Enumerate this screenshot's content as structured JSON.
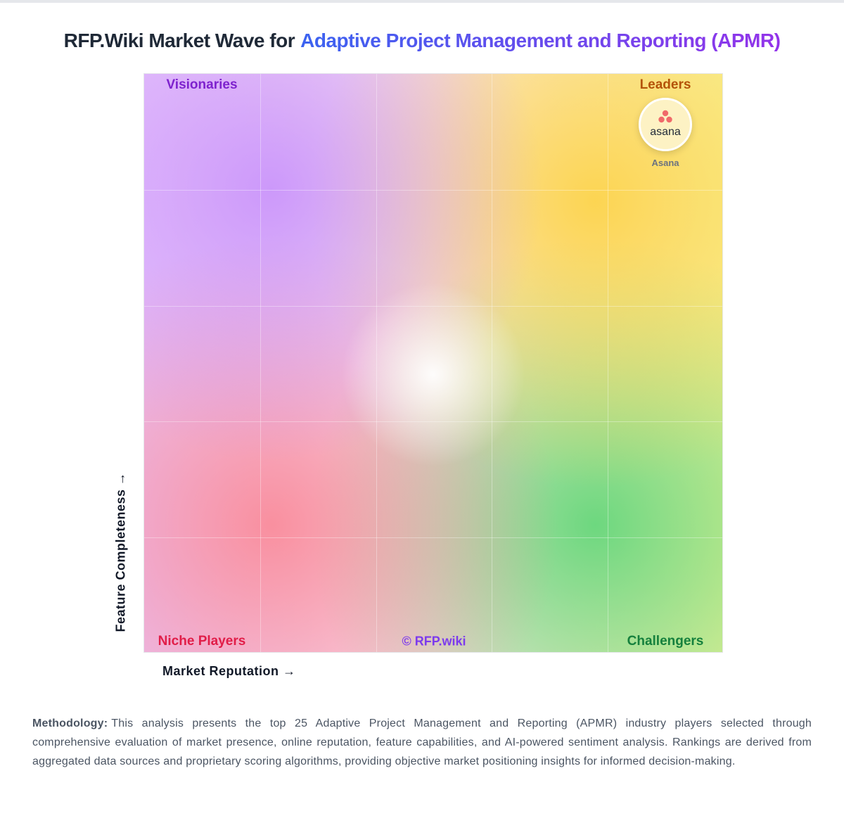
{
  "header": {
    "title_prefix": "RFP.Wiki Market Wave for",
    "title_highlight": "Adaptive Project Management and Reporting (APMR)"
  },
  "quadrants": {
    "top_left": "Visionaries",
    "top_right": "Leaders",
    "bottom_left": "Niche Players",
    "bottom_right": "Challengers"
  },
  "watermark": "© RFP.wiki",
  "axes": {
    "y_label": "Feature Completeness →",
    "x_label": "Market Reputation →"
  },
  "vendors": [
    {
      "name": "Asana",
      "logo_text": "asana"
    }
  ],
  "methodology": {
    "label": "Methodology:",
    "text": "This analysis presents the top 25 Adaptive Project Management and Reporting (APMR) industry players selected through comprehensive evaluation of market presence, online reputation, feature capabilities, and AI-powered sentiment analysis. Rankings are derived from aggregated data sources and proprietary scoring algorithms, providing objective market positioning insights for informed decision-making."
  }
}
